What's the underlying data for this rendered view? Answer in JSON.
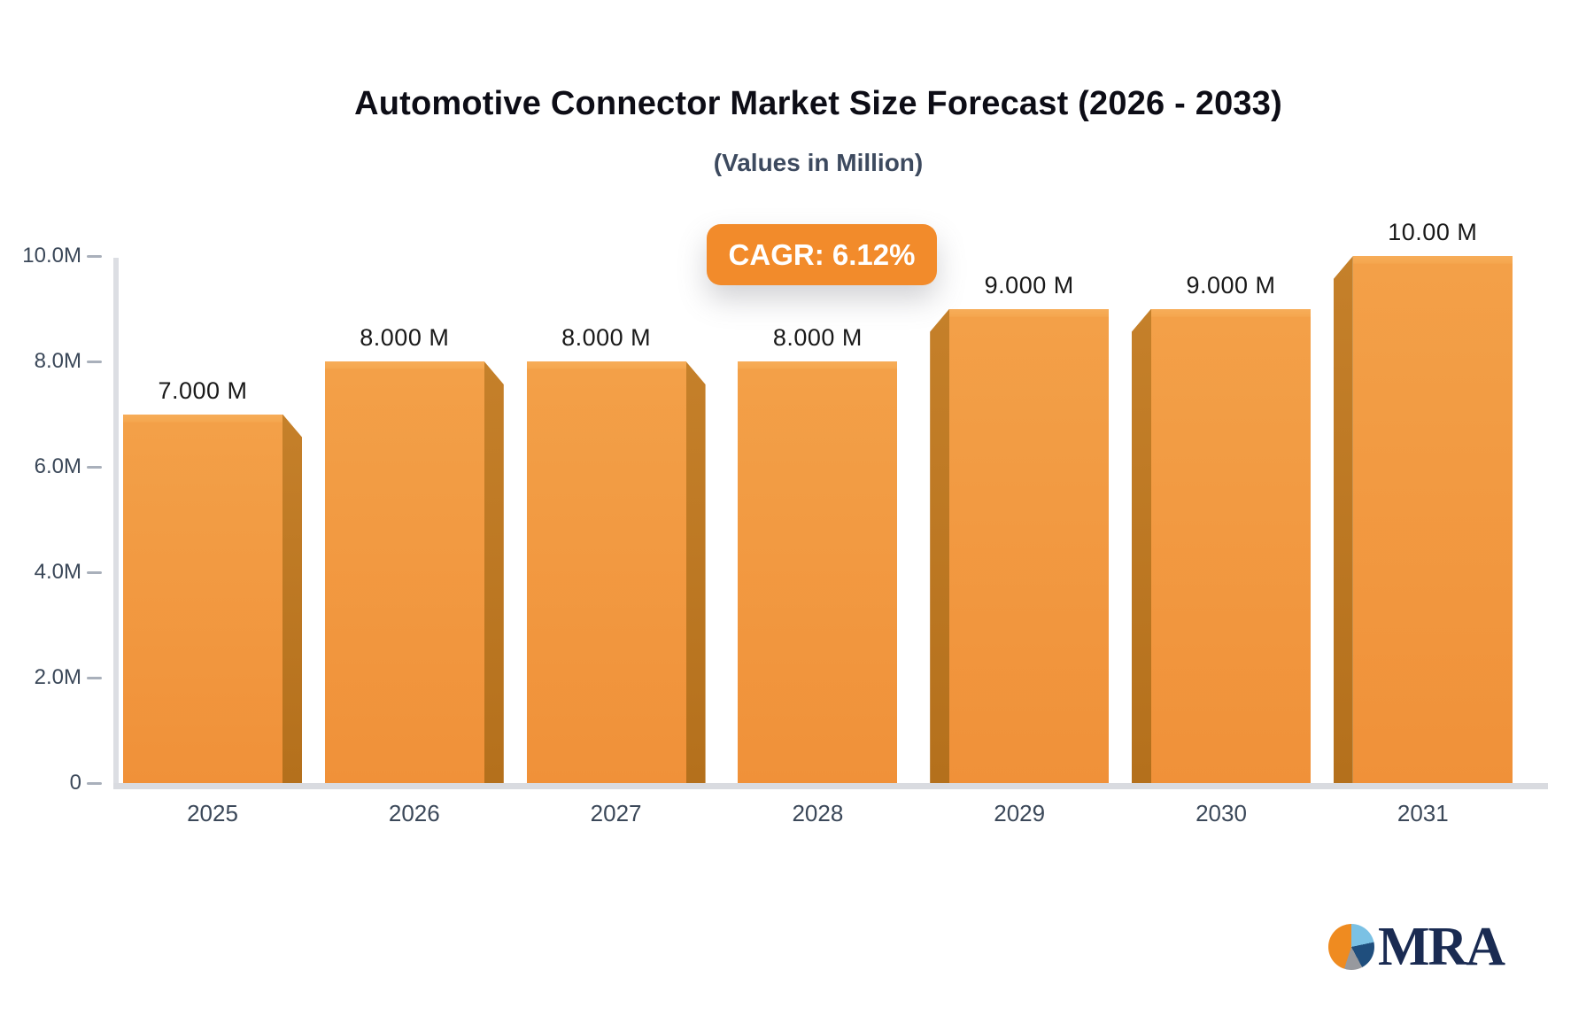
{
  "page": {
    "title": "Automotive Connector Market Size Forecast (2026 - 2033)",
    "subtitle": "(Values in Million)",
    "cagr_badge": "CAGR: 6.12%",
    "logo_text": "MRA"
  },
  "colors": {
    "bar_face": "#f2993f",
    "bar_face_highlight": "#f7ad59",
    "bar_side": "#ba761f",
    "badge_bg": "#f28b2b",
    "axis_line": "#dcdee3",
    "tick": "#a9b0bb",
    "axis_text": "#3b4859",
    "value_text": "#191919",
    "title_text": "#0d0d16",
    "subtitle_text": "#3d4a5f",
    "logo_navy": "#1a2b52",
    "logo_light_blue": "#7bc1e4",
    "logo_dark_blue": "#1f4e7d",
    "logo_gray": "#97999e",
    "logo_orange": "#ef8b20"
  },
  "chart_data": {
    "type": "bar",
    "title": "Automotive Connector Market Size Forecast (2026 - 2033)",
    "subtitle": "(Values in Million)",
    "categories": [
      "2025",
      "2026",
      "2027",
      "2028",
      "2029",
      "2030",
      "2031"
    ],
    "values": [
      7,
      8,
      8,
      8,
      9,
      9,
      10
    ],
    "value_labels": [
      "7.000 M",
      "8.000 M",
      "8.000 M",
      "8.000 M",
      "9.000 M",
      "9.000 M",
      "10.00 M"
    ],
    "unit": "Million",
    "annotations": [
      "CAGR: 6.12%"
    ],
    "xlabel": "",
    "ylabel": "",
    "ylim": [
      0,
      10
    ],
    "y_ticks": [
      {
        "value": 0,
        "label": "0"
      },
      {
        "value": 2,
        "label": "2.0M"
      },
      {
        "value": 4,
        "label": "4.0M"
      },
      {
        "value": 6,
        "label": "6.0M"
      },
      {
        "value": 8,
        "label": "8.0M"
      },
      {
        "value": 10,
        "label": "10.0M"
      }
    ],
    "grid": false,
    "legend": null,
    "bar_style": "3d-beveled-orange"
  }
}
